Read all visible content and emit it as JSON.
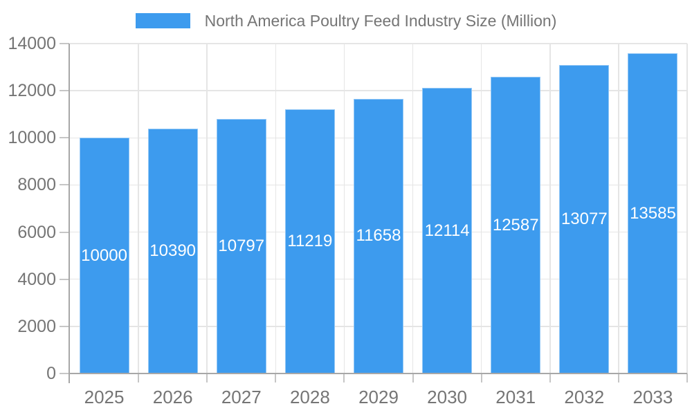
{
  "chart_data": {
    "type": "bar",
    "legend_label": "North America Poultry Feed Industry Size (Million)",
    "legend_position": "top",
    "categories": [
      "2025",
      "2026",
      "2027",
      "2028",
      "2029",
      "2030",
      "2031",
      "2032",
      "2033"
    ],
    "values": [
      10000,
      10390,
      10797,
      11219,
      11658,
      12114,
      12587,
      13077,
      13585
    ],
    "title": "",
    "xlabel": "",
    "ylabel": "",
    "ylim": [
      0,
      14000
    ],
    "yticks": [
      0,
      2000,
      4000,
      6000,
      8000,
      10000,
      12000,
      14000
    ],
    "grid": true,
    "colors": {
      "bar": "#3d9bee",
      "bar_value_label": "#ffffff",
      "axis_text": "#757575",
      "grid_line": "#e5e5e5",
      "axis_line": "#a7a7a7",
      "tick_mark": "#c6c6c6",
      "background": "#ffffff"
    }
  }
}
